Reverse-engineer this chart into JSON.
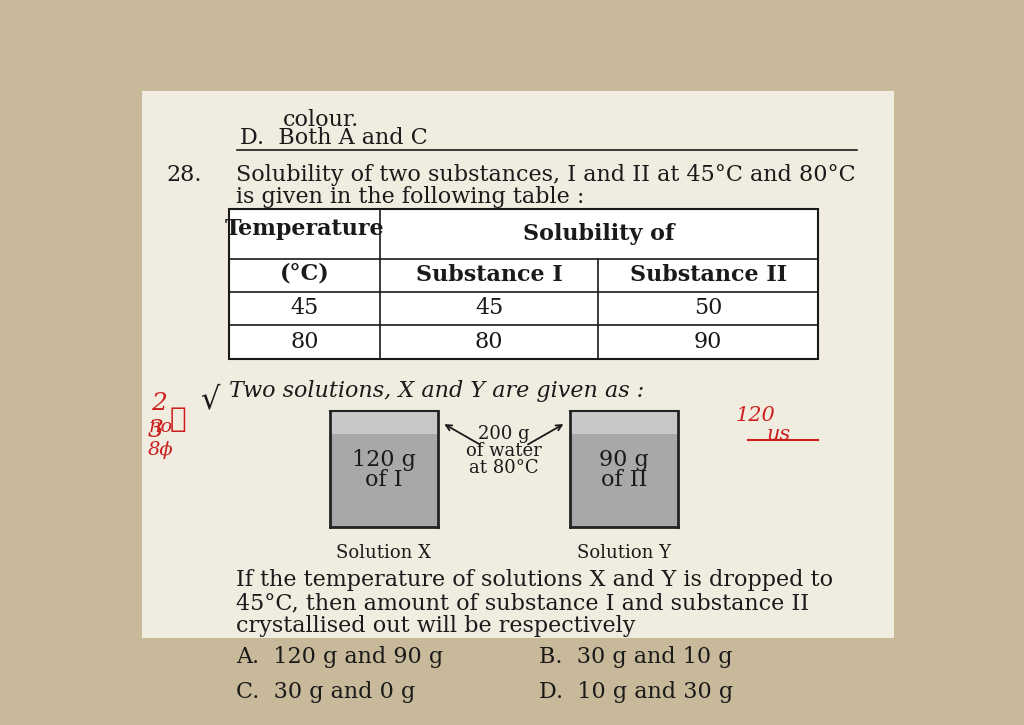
{
  "background_color": "#c8b99a",
  "paper_color": "#f0ece0",
  "prev_text": "colour.",
  "prev_answer": "D.  Both A and C",
  "question_number": "28.",
  "question_line1": "Solubility of two substances, I and II at 45°C and 80°C",
  "question_line2": "is given in the following table :",
  "table_data": [
    [
      "45",
      "45",
      "50"
    ],
    [
      "80",
      "80",
      "90"
    ]
  ],
  "solutions_text": "Two solutions, X and Y are given as :",
  "solution_x_label": "Solution X",
  "solution_y_label": "Solution Y",
  "solution_x_line1": "120 g",
  "solution_x_line2": "of I",
  "solution_y_line1": "90 g",
  "solution_y_line2": "of II",
  "water_line1": "200 g",
  "water_line2": "of water",
  "water_line3": "at 80°C",
  "followup_line1": "If the temperature of solutions X and Y is dropped to",
  "followup_line2": "45°C, then amount of substance I and substance II",
  "followup_line3": "crystallised out will be respectively",
  "opt_A": "A.  120 g and 90 g",
  "opt_B": "B.  30 g and 10 g",
  "opt_C": "C.  30 g and 0 g",
  "opt_D": "D.  10 g and 30 g",
  "container_fill": "#a8a8a8",
  "container_lighter": "#c8c8c8",
  "container_border": "#222222",
  "red_color": "#cc2020",
  "dark_color": "#1a1a1a"
}
